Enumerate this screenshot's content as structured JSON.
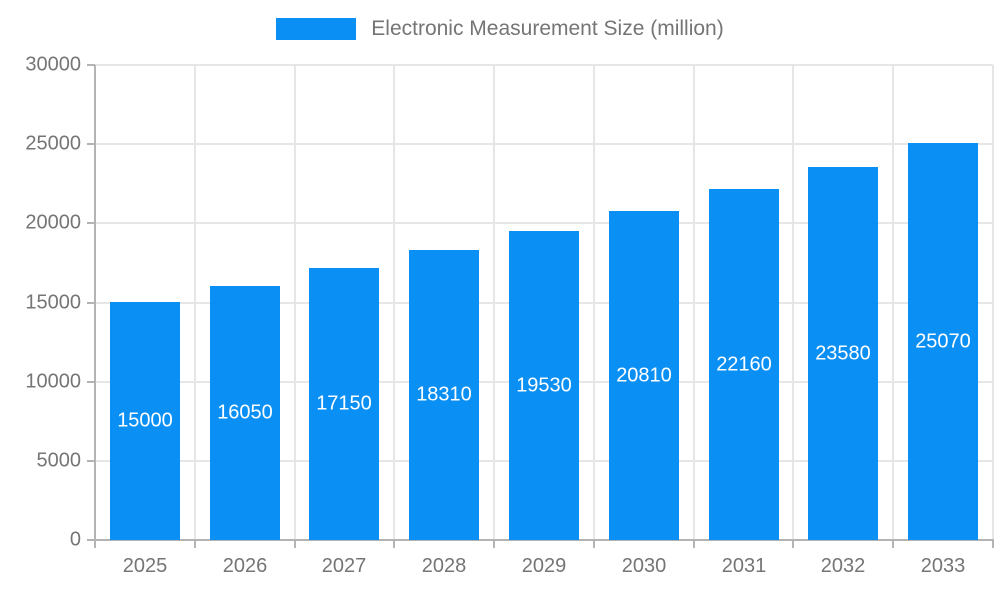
{
  "chart_data": {
    "type": "bar",
    "title": "",
    "legend_label": "Electronic Measurement Size (million)",
    "legend_position": "top-center",
    "categories": [
      "2025",
      "2026",
      "2027",
      "2028",
      "2029",
      "2030",
      "2031",
      "2032",
      "2033"
    ],
    "values": [
      15000,
      16050,
      17150,
      18310,
      19530,
      20810,
      22160,
      23580,
      25070
    ],
    "xlabel": "",
    "ylabel": "",
    "ylim": [
      0,
      30000
    ],
    "yticks": [
      0,
      5000,
      10000,
      15000,
      20000,
      25000,
      30000
    ],
    "grid": true,
    "value_labels": "inside-bar-centered",
    "colors": {
      "bar": "#0a8ff5",
      "bar_value_text": "#ffffff",
      "axis_text": "#757575",
      "legend_text": "#757575",
      "gridline": "#e6e6e6",
      "axis_line": "#b3b3b3"
    }
  }
}
